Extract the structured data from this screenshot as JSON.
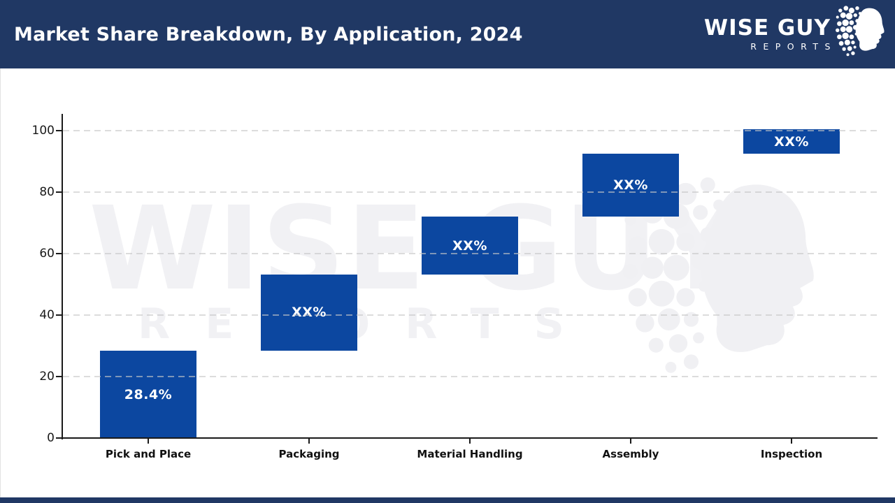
{
  "header": {
    "title": "Market Share Breakdown, By Application, 2024",
    "brand": {
      "line1": "WISE GUY",
      "line2": "REPORTS"
    }
  },
  "watermark": {
    "line1": "WISE GUY",
    "line2": "REPORTS"
  },
  "colors": {
    "header_bg": "#203864",
    "footer_bg": "#203864",
    "bar": "#0c47a0",
    "bar_label": "#ffffff",
    "grid": "#d9d9d9",
    "axis": "#1a1a1a"
  },
  "chart_data": {
    "type": "bar",
    "subtype": "waterfall",
    "title": "Market Share Breakdown, By Application, 2024",
    "categories": [
      "Pick and Place",
      "Packaging",
      "Material Handling",
      "Assembly",
      "Inspection"
    ],
    "series": [
      {
        "name": "Market Share",
        "segments": [
          {
            "category": "Pick and Place",
            "start": 0,
            "end": 28.4,
            "label": "28.4%"
          },
          {
            "category": "Packaging",
            "start": 28.4,
            "end": 53.2,
            "label": "XX%"
          },
          {
            "category": "Material Handling",
            "start": 53.2,
            "end": 72.0,
            "label": "XX%"
          },
          {
            "category": "Assembly",
            "start": 72.0,
            "end": 92.4,
            "label": "XX%"
          },
          {
            "category": "Inspection",
            "start": 92.4,
            "end": 100.4,
            "label": "XX%"
          }
        ]
      }
    ],
    "yticks": [
      0,
      20,
      40,
      60,
      80,
      100
    ],
    "ylim": [
      0,
      105
    ],
    "xlabel": "",
    "ylabel": "",
    "grid": "dashed-horizontal-over-bars",
    "legend": false
  }
}
